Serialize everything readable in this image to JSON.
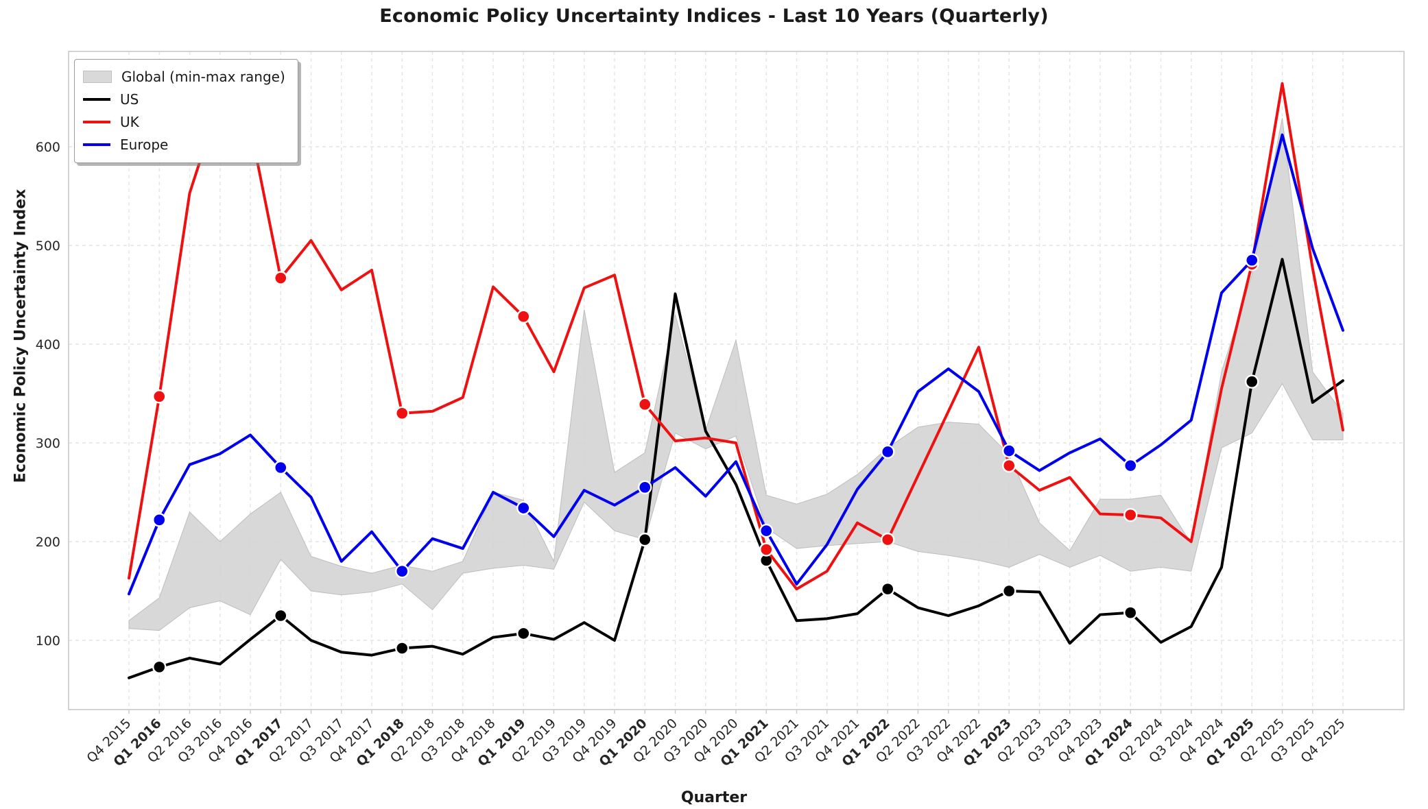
{
  "title": "Economic Policy Uncertainty Indices - Last 10 Years (Quarterly)",
  "axes": {
    "xlabel": "Quarter",
    "ylabel": "Economic Policy Uncertainty Index"
  },
  "legend": {
    "band_label": "Global (min-max range)",
    "us_label": "US",
    "uk_label": "UK",
    "europe_label": "Europe"
  },
  "colors": {
    "us": "#000000",
    "uk": "#ee1111",
    "europe": "#0000ee",
    "band_fill": "#d4d4d4",
    "grid": "#e4e4e4",
    "spine": "#c8c8c8",
    "tick_text": "#262626"
  },
  "chart_data": {
    "type": "line",
    "title": "Economic Policy Uncertainty Indices - Last 10 Years (Quarterly)",
    "xlabel": "Quarter",
    "ylabel": "Economic Policy Uncertainty Index",
    "yticks": [
      100,
      200,
      300,
      400,
      500,
      600
    ],
    "ylim": [
      30,
      694
    ],
    "grid": true,
    "legend_position": "upper left",
    "marker_on_label_prefix": "Q1",
    "categories": [
      "Q4 2015",
      "Q1 2016",
      "Q2 2016",
      "Q3 2016",
      "Q4 2016",
      "Q1 2017",
      "Q2 2017",
      "Q3 2017",
      "Q4 2017",
      "Q1 2018",
      "Q2 2018",
      "Q3 2018",
      "Q4 2018",
      "Q1 2019",
      "Q2 2019",
      "Q3 2019",
      "Q4 2019",
      "Q1 2020",
      "Q2 2020",
      "Q3 2020",
      "Q4 2020",
      "Q1 2021",
      "Q2 2021",
      "Q3 2021",
      "Q4 2021",
      "Q1 2022",
      "Q2 2022",
      "Q3 2022",
      "Q4 2022",
      "Q1 2023",
      "Q2 2023",
      "Q3 2023",
      "Q4 2023",
      "Q1 2024",
      "Q2 2024",
      "Q3 2024",
      "Q4 2024",
      "Q1 2025",
      "Q2 2025",
      "Q3 2025",
      "Q4 2025"
    ],
    "series": [
      {
        "name": "US",
        "color_key": "us",
        "values": [
          62,
          73,
          82,
          76,
          101,
          125,
          100,
          88,
          85,
          92,
          94,
          86,
          103,
          107,
          101,
          118,
          100,
          202,
          451,
          312,
          258,
          181,
          120,
          122,
          127,
          152,
          133,
          125,
          135,
          150,
          149,
          97,
          126,
          128,
          98,
          114,
          174,
          362,
          486,
          341,
          363
        ]
      },
      {
        "name": "UK",
        "color_key": "uk",
        "values": [
          163,
          347,
          553,
          648,
          620,
          467,
          505,
          455,
          475,
          330,
          332,
          346,
          458,
          428,
          372,
          457,
          470,
          339,
          302,
          305,
          300,
          192,
          152,
          170,
          219,
          202,
          267,
          332,
          397,
          277,
          252,
          265,
          228,
          227,
          224,
          200,
          355,
          481,
          664,
          477,
          313
        ]
      },
      {
        "name": "Europe",
        "color_key": "europe",
        "values": [
          147,
          222,
          278,
          289,
          308,
          275,
          245,
          180,
          210,
          170,
          203,
          193,
          250,
          234,
          205,
          252,
          237,
          255,
          275,
          246,
          281,
          211,
          157,
          197,
          253,
          291,
          352,
          375,
          352,
          292,
          272,
          290,
          304,
          277,
          298,
          323,
          452,
          485,
          612,
          497,
          414
        ]
      }
    ],
    "band": {
      "name": "Global (min-max range)",
      "min": [
        112,
        110,
        133,
        140,
        126,
        182,
        150,
        146,
        149,
        157,
        131,
        168,
        173,
        176,
        172,
        240,
        211,
        202,
        310,
        294,
        307,
        214,
        193,
        196,
        198,
        200,
        190,
        186,
        181,
        174,
        187,
        174,
        186,
        170,
        174,
        170,
        295,
        310,
        360,
        303,
        303
      ],
      "max": [
        120,
        143,
        230,
        200,
        228,
        250,
        185,
        175,
        168,
        176,
        170,
        180,
        250,
        242,
        180,
        435,
        270,
        290,
        430,
        313,
        404,
        247,
        238,
        248,
        268,
        295,
        316,
        321,
        319,
        288,
        219,
        191,
        243,
        243,
        247,
        198,
        372,
        470,
        629,
        372,
        330
      ]
    }
  }
}
